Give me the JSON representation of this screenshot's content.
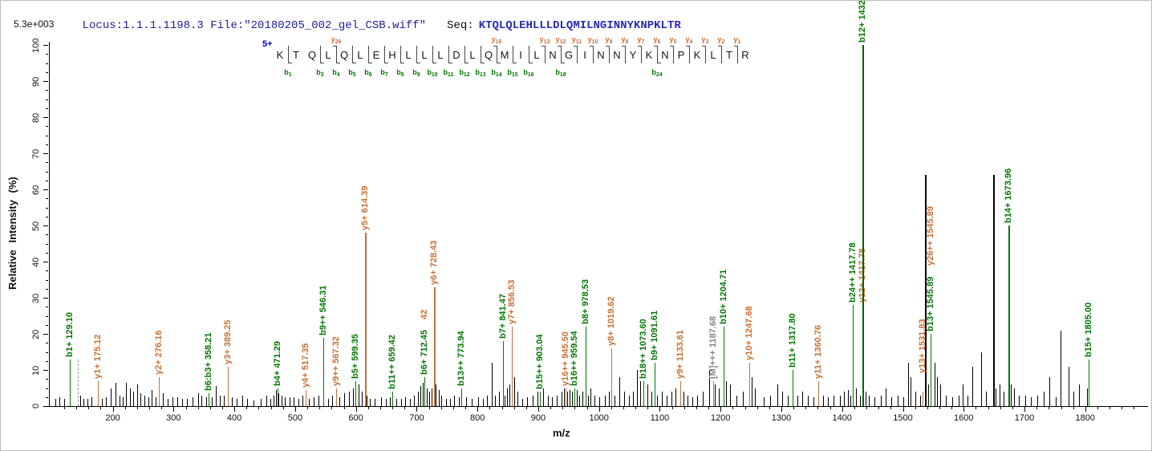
{
  "header": {
    "locus_text": "Locus:1.1.1.1198.3 File:\"20180205_002_gel_CSB.wiff\"",
    "seq_label": "Seq:",
    "sequence": "KTQLQLEHLLLDLQMILNGINNYKNPKLTR"
  },
  "base_peak_intensity": "5.3e+003",
  "colors": {
    "b_ion": "#007700",
    "b_ion_dark": "#006400",
    "y_ion": "#c96f33",
    "precursor": "#858585",
    "peak_default": "#000000",
    "header_navy": "#22229a",
    "sequence_blue": "#2a2ab8",
    "charge_blue": "#0000cc"
  },
  "ladder": {
    "charge": "5+",
    "residues": [
      "K",
      "T",
      "Q",
      "L",
      "Q",
      "L",
      "E",
      "H",
      "L",
      "L",
      "L",
      "D",
      "L",
      "Q",
      "M",
      "I",
      "L",
      "N",
      "G",
      "I",
      "N",
      "N",
      "Y",
      "K",
      "N",
      "P",
      "K",
      "L",
      "T",
      "R"
    ],
    "boundaries": [
      {
        "after": 1,
        "b": "b1"
      },
      {
        "after": 3,
        "b": "b3"
      },
      {
        "after": 4,
        "b": "b4",
        "y": "y26"
      },
      {
        "after": 5,
        "b": "b5"
      },
      {
        "after": 6,
        "b": "b6"
      },
      {
        "after": 7,
        "b": "b7"
      },
      {
        "after": 8,
        "b": "b8"
      },
      {
        "after": 9,
        "b": "b9"
      },
      {
        "after": 10,
        "b": "b10"
      },
      {
        "after": 11,
        "b": "b11"
      },
      {
        "after": 12,
        "b": "b12"
      },
      {
        "after": 13,
        "b": "b13"
      },
      {
        "after": 14,
        "b": "b14",
        "y": "y16"
      },
      {
        "after": 15,
        "b": "b15"
      },
      {
        "after": 16,
        "b": "b16"
      },
      {
        "after": 17,
        "y": "y13"
      },
      {
        "after": 18,
        "b": "b18",
        "y": "y12"
      },
      {
        "after": 19,
        "y": "y11"
      },
      {
        "after": 20,
        "y": "y10"
      },
      {
        "after": 21,
        "y": "y9"
      },
      {
        "after": 22,
        "y": "y8"
      },
      {
        "after": 23,
        "y": "y7"
      },
      {
        "after": 24,
        "b": "b24",
        "y": "y6"
      },
      {
        "after": 25,
        "y": "y5"
      },
      {
        "after": 26,
        "y": "y4"
      },
      {
        "after": 27,
        "y": "y3"
      },
      {
        "after": 28,
        "y": "y2"
      },
      {
        "after": 29,
        "y": "y1"
      }
    ]
  },
  "chart_data": {
    "type": "bar",
    "subtype": "ms2-fragmentation-spectrum",
    "title": "",
    "xlabel": "m/z",
    "ylabel": "Relative Intensity (%)",
    "xlim": [
      95,
      1890
    ],
    "ylim": [
      0,
      100
    ],
    "x_major_tick_step": 100,
    "x_major_tick_labels_from": 200,
    "x_major_tick_labels_to": 1800,
    "y_major_tick_step": 10,
    "grid": false,
    "labeled_peaks": [
      {
        "mz": 129.1,
        "intensity": 13,
        "ion": "b",
        "label": "b1+ 129.10"
      },
      {
        "mz": 175.12,
        "intensity": 7,
        "ion": "y",
        "label": "y1+ 175.12"
      },
      {
        "mz": 276.16,
        "intensity": 8,
        "ion": "y",
        "label": "y2+ 276.16"
      },
      {
        "mz": 358.21,
        "intensity": 3.5,
        "ion": "b",
        "label": "b6:b3+ 358.21"
      },
      {
        "mz": 389.25,
        "intensity": 11,
        "ion": "y",
        "label": "y3+ 389.25"
      },
      {
        "mz": 471.29,
        "intensity": 5,
        "ion": "b",
        "label": "b4+ 471.29"
      },
      {
        "mz": 517.35,
        "intensity": 4.5,
        "ion": "y",
        "label": "y4+ 517.35"
      },
      {
        "mz": 546.31,
        "intensity": 19,
        "ion": "b",
        "label": "b9++ 546.31"
      },
      {
        "mz": 567.32,
        "intensity": 5,
        "ion": "y",
        "label": "y9++ 567.32"
      },
      {
        "mz": 599.35,
        "intensity": 7,
        "ion": "b",
        "label": "b5+ 599.35"
      },
      {
        "mz": 614.39,
        "intensity": 48,
        "ion": "y",
        "label": "y5+ 614.39",
        "wide": true
      },
      {
        "mz": 659.42,
        "intensity": 4,
        "ion": "b",
        "label": "b11++ 659.42"
      },
      {
        "mz": 712.45,
        "intensity": 8,
        "ion": "b",
        "label": "b6+ 712.45",
        "label2": "42",
        "ion2": "y",
        "stack": "above"
      },
      {
        "mz": 728.43,
        "intensity": 33,
        "ion": "y",
        "label": "y6+ 728.43",
        "wide": true
      },
      {
        "mz": 773.94,
        "intensity": 5,
        "ion": "b",
        "label": "b13++ 773.94"
      },
      {
        "mz": 841.47,
        "intensity": 18,
        "ion": "b",
        "label": "b7+ 841.47"
      },
      {
        "mz": 856.53,
        "intensity": 22,
        "ion": "y",
        "label": "y7+ 856.53"
      },
      {
        "mz": 903.04,
        "intensity": 4,
        "ion": "b",
        "label": "b15++ 903.04"
      },
      {
        "mz": 945.5,
        "intensity": 5,
        "ion": "y",
        "label": "y16++ 945.50"
      },
      {
        "mz": 959.54,
        "intensity": 5,
        "ion": "b",
        "label": "b16++ 959.54"
      },
      {
        "mz": 978.53,
        "intensity": 22,
        "ion": "b",
        "label": "b8+ 978.53"
      },
      {
        "mz": 1019.62,
        "intensity": 16,
        "ion": "y",
        "label": "y8+ 1019.62"
      },
      {
        "mz": 1073.6,
        "intensity": 7,
        "ion": "b",
        "label": "b18++ 1073.60"
      },
      {
        "mz": 1091.61,
        "intensity": 12,
        "ion": "b",
        "label": "b9+ 1091.61"
      },
      {
        "mz": 1133.61,
        "intensity": 7,
        "ion": "y",
        "label": "y9+ 1133.61"
      },
      {
        "mz": 1187.68,
        "intensity": 7,
        "ion": "M",
        "label": "[M]+++ 1187.68"
      },
      {
        "mz": 1204.71,
        "intensity": 22,
        "ion": "b",
        "label": "b10+ 1204.71"
      },
      {
        "mz": 1247.68,
        "intensity": 12,
        "ion": "y",
        "label": "y10+ 1247.68"
      },
      {
        "mz": 1317.8,
        "intensity": 10,
        "ion": "b",
        "label": "b11+ 1317.80"
      },
      {
        "mz": 1360.76,
        "intensity": 7,
        "ion": "y",
        "label": "y11+ 1360.76"
      },
      {
        "mz": 1417.78,
        "intensity": 28,
        "ion": "b",
        "label": "b24++ 1417.78",
        "label2": "y12+ 1417.78",
        "ion2": "y",
        "stack": "side"
      },
      {
        "mz": 1432.81,
        "intensity": 100,
        "ion": "b",
        "label": "b12+ 1432.81",
        "wide": true,
        "dark": true
      },
      {
        "mz": 1531.83,
        "intensity": 4,
        "ion": "y",
        "label": "y13+ 1531.83",
        "dy": -20
      },
      {
        "mz": 1545.89,
        "intensity": 20,
        "ion": "b",
        "label": "b13+ 1545.89",
        "label2": "y26++ 1545.89",
        "ion2": "y",
        "stack": "above"
      },
      {
        "mz": 1673.96,
        "intensity": 50,
        "ion": "b",
        "label": "b14+ 1673.96",
        "wide": true
      },
      {
        "mz": 1805.0,
        "intensity": 13,
        "ion": "b",
        "label": "b15+ 1805.00"
      }
    ],
    "dashed_marker": {
      "mz": 143,
      "intensity": 13
    },
    "unlabeled_peaks": [
      [
        105,
        2
      ],
      [
        112,
        2.5
      ],
      [
        120,
        2
      ],
      [
        147,
        3
      ],
      [
        152,
        2
      ],
      [
        158,
        2
      ],
      [
        165,
        2.5
      ],
      [
        182,
        2
      ],
      [
        188,
        2.5
      ],
      [
        197,
        5
      ],
      [
        204,
        6.5
      ],
      [
        211,
        3
      ],
      [
        216,
        2.5
      ],
      [
        222,
        6.5
      ],
      [
        228,
        5
      ],
      [
        233,
        4
      ],
      [
        240,
        6
      ],
      [
        246,
        3.5
      ],
      [
        252,
        3
      ],
      [
        258,
        2.5
      ],
      [
        264,
        4.5
      ],
      [
        271,
        2.5
      ],
      [
        283,
        3.5
      ],
      [
        290,
        2
      ],
      [
        298,
        2.5
      ],
      [
        306,
        2.5
      ],
      [
        314,
        2
      ],
      [
        322,
        2
      ],
      [
        331,
        2.5
      ],
      [
        340,
        3.5
      ],
      [
        346,
        3
      ],
      [
        353,
        2.5
      ],
      [
        363,
        2.5
      ],
      [
        370,
        5.5
      ],
      [
        376,
        3
      ],
      [
        383,
        3
      ],
      [
        396,
        2.5
      ],
      [
        404,
        2
      ],
      [
        413,
        3
      ],
      [
        421,
        2
      ],
      [
        431,
        1.5
      ],
      [
        444,
        2
      ],
      [
        452,
        3
      ],
      [
        459,
        2
      ],
      [
        464,
        3
      ],
      [
        468,
        4.5
      ],
      [
        473,
        3.5
      ],
      [
        478,
        3
      ],
      [
        483,
        2.5
      ],
      [
        491,
        2.5
      ],
      [
        498,
        2.5
      ],
      [
        506,
        2
      ],
      [
        512,
        3
      ],
      [
        523,
        2
      ],
      [
        531,
        2.5
      ],
      [
        539,
        3
      ],
      [
        554,
        2
      ],
      [
        561,
        3
      ],
      [
        573,
        2.5
      ],
      [
        581,
        3.5
      ],
      [
        589,
        4
      ],
      [
        595,
        5
      ],
      [
        605,
        6
      ],
      [
        610,
        4
      ],
      [
        618,
        3
      ],
      [
        623,
        2
      ],
      [
        631,
        2
      ],
      [
        641,
        2.5
      ],
      [
        649,
        2
      ],
      [
        656,
        2.5
      ],
      [
        667,
        2
      ],
      [
        674,
        2
      ],
      [
        681,
        2.5
      ],
      [
        689,
        2
      ],
      [
        696,
        3
      ],
      [
        702,
        4
      ],
      [
        706,
        5.5
      ],
      [
        710,
        6.5
      ],
      [
        716,
        5
      ],
      [
        720,
        4
      ],
      [
        724,
        5
      ],
      [
        731,
        6
      ],
      [
        737,
        4.5
      ],
      [
        741,
        3
      ],
      [
        748,
        2
      ],
      [
        755,
        2
      ],
      [
        762,
        3
      ],
      [
        769,
        2.5
      ],
      [
        781,
        2.5
      ],
      [
        791,
        2
      ],
      [
        801,
        2.5
      ],
      [
        809,
        2
      ],
      [
        816,
        3
      ],
      [
        823,
        12
      ],
      [
        829,
        3
      ],
      [
        836,
        4
      ],
      [
        845,
        3
      ],
      [
        849,
        5
      ],
      [
        853,
        6
      ],
      [
        861,
        8
      ],
      [
        866,
        4
      ],
      [
        873,
        2
      ],
      [
        881,
        2.5
      ],
      [
        891,
        3
      ],
      [
        899,
        4
      ],
      [
        908,
        5
      ],
      [
        916,
        3
      ],
      [
        923,
        2.5
      ],
      [
        931,
        3
      ],
      [
        938,
        4
      ],
      [
        942,
        5
      ],
      [
        948,
        4
      ],
      [
        952,
        4.5
      ],
      [
        956,
        4
      ],
      [
        963,
        4.5
      ],
      [
        968,
        3
      ],
      [
        973,
        4
      ],
      [
        982,
        3
      ],
      [
        986,
        5
      ],
      [
        993,
        3
      ],
      [
        1001,
        2.5
      ],
      [
        1009,
        3
      ],
      [
        1016,
        4
      ],
      [
        1026,
        3
      ],
      [
        1033,
        8
      ],
      [
        1041,
        4
      ],
      [
        1049,
        3
      ],
      [
        1056,
        4
      ],
      [
        1062,
        10
      ],
      [
        1068,
        7
      ],
      [
        1079,
        6
      ],
      [
        1086,
        4
      ],
      [
        1096,
        3
      ],
      [
        1103,
        4
      ],
      [
        1111,
        3
      ],
      [
        1119,
        4
      ],
      [
        1126,
        5
      ],
      [
        1139,
        4
      ],
      [
        1146,
        3
      ],
      [
        1153,
        2.5
      ],
      [
        1161,
        3
      ],
      [
        1171,
        4
      ],
      [
        1181,
        10
      ],
      [
        1191,
        6
      ],
      [
        1197,
        5
      ],
      [
        1209,
        7
      ],
      [
        1215,
        6
      ],
      [
        1226,
        3
      ],
      [
        1236,
        4
      ],
      [
        1251,
        8
      ],
      [
        1257,
        5
      ],
      [
        1271,
        2.5
      ],
      [
        1281,
        3
      ],
      [
        1293,
        6
      ],
      [
        1301,
        4
      ],
      [
        1311,
        3
      ],
      [
        1326,
        3
      ],
      [
        1334,
        4
      ],
      [
        1343,
        3
      ],
      [
        1353,
        2.5
      ],
      [
        1369,
        3
      ],
      [
        1377,
        2.5
      ],
      [
        1386,
        3
      ],
      [
        1396,
        3
      ],
      [
        1403,
        4
      ],
      [
        1409,
        4.5
      ],
      [
        1414,
        3
      ],
      [
        1423,
        5
      ],
      [
        1429,
        3
      ],
      [
        1438,
        4
      ],
      [
        1444,
        3
      ],
      [
        1453,
        2.5
      ],
      [
        1463,
        3
      ],
      [
        1471,
        5
      ],
      [
        1481,
        2.5
      ],
      [
        1491,
        3
      ],
      [
        1501,
        2.5
      ],
      [
        1508,
        12
      ],
      [
        1513,
        8
      ],
      [
        1521,
        4
      ],
      [
        1528,
        3
      ],
      [
        1536,
        64
      ],
      [
        1541,
        6
      ],
      [
        1552,
        12
      ],
      [
        1556,
        8
      ],
      [
        1561,
        6
      ],
      [
        1571,
        3
      ],
      [
        1581,
        2.5
      ],
      [
        1591,
        3
      ],
      [
        1598,
        6
      ],
      [
        1606,
        3
      ],
      [
        1614,
        11
      ],
      [
        1628,
        15
      ],
      [
        1636,
        4
      ],
      [
        1649,
        64
      ],
      [
        1653,
        5
      ],
      [
        1659,
        6
      ],
      [
        1666,
        4
      ],
      [
        1678,
        6
      ],
      [
        1683,
        5
      ],
      [
        1691,
        3
      ],
      [
        1701,
        3
      ],
      [
        1711,
        2.5
      ],
      [
        1721,
        3
      ],
      [
        1731,
        4
      ],
      [
        1741,
        8
      ],
      [
        1752,
        2.5
      ],
      [
        1759,
        21
      ],
      [
        1772,
        11
      ],
      [
        1781,
        4
      ],
      [
        1790,
        6
      ],
      [
        1803,
        5
      ]
    ]
  }
}
